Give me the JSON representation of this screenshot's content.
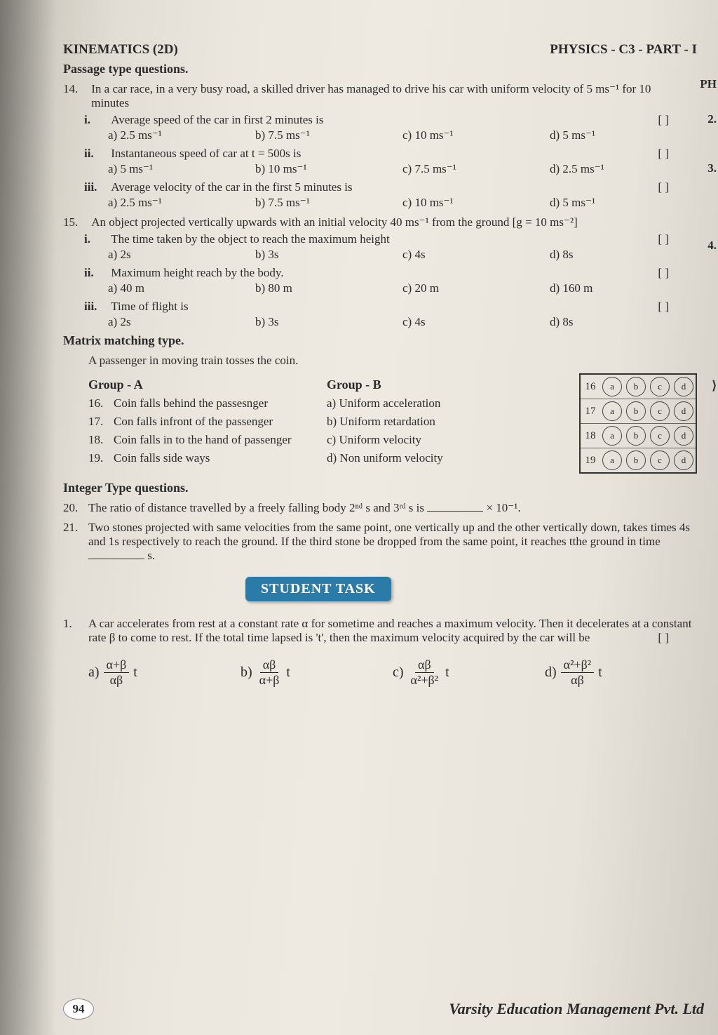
{
  "header": {
    "chapter": "KINEMATICS (2D)",
    "subject": "PHYSICS - C3 - PART - I"
  },
  "section_passage": "Passage type questions.",
  "q14": {
    "num": "14.",
    "text": "In a car race, in a very busy road, a skilled driver has managed to drive his car with uniform velocity of 5 ms⁻¹ for 10 minutes",
    "i": {
      "label": "i.",
      "text": "Average speed of the car in first 2 minutes is",
      "bracket": "[     ]",
      "a": "a) 2.5 ms⁻¹",
      "b": "b) 7.5 ms⁻¹",
      "c": "c) 10 ms⁻¹",
      "d": "d) 5 ms⁻¹"
    },
    "ii": {
      "label": "ii.",
      "text": "Instantaneous speed of car at t = 500s is",
      "bracket": "[     ]",
      "a": "a) 5 ms⁻¹",
      "b": "b) 10 ms⁻¹",
      "c": "c) 7.5 ms⁻¹",
      "d": "d) 2.5 ms⁻¹"
    },
    "iii": {
      "label": "iii.",
      "text": "Average velocity of the car in the first 5 minutes is",
      "bracket": "[     ]",
      "a": "a) 2.5 ms⁻¹",
      "b": "b) 7.5 ms⁻¹",
      "c": "c) 10 ms⁻¹",
      "d": "d) 5 ms⁻¹"
    }
  },
  "q15": {
    "num": "15.",
    "text": "An object projected vertically upwards with an initial velocity 40 ms⁻¹ from the ground [g = 10 ms⁻²]",
    "i": {
      "label": "i.",
      "text": "The time taken by the object to reach the maximum height",
      "bracket": "[     ]",
      "a": "a) 2s",
      "b": "b) 3s",
      "c": "c) 4s",
      "d": "d) 8s"
    },
    "ii": {
      "label": "ii.",
      "text": "Maximum height reach by the body.",
      "bracket": "[     ]",
      "a": "a) 40 m",
      "b": "b) 80 m",
      "c": "c) 20 m",
      "d": "d) 160 m"
    },
    "iii": {
      "label": "iii.",
      "text": "Time of flight is",
      "bracket": "[     ]",
      "a": "a) 2s",
      "b": "b) 3s",
      "c": "c) 4s",
      "d": "d) 8s"
    }
  },
  "section_matrix": "Matrix matching type.",
  "matrix": {
    "intro": "A passenger in moving train tosses the coin.",
    "groupA_h": "Group - A",
    "groupB_h": "Group - B",
    "r16": {
      "n": "16.",
      "a": "Coin falls behind the passesnger",
      "b": "a) Uniform acceleration"
    },
    "r17": {
      "n": "17.",
      "a": "Con falls infront of the passenger",
      "b": "b) Uniform retardation"
    },
    "r18": {
      "n": "18.",
      "a": "Coin falls in to the hand of passenger",
      "b": "c) Uniform velocity"
    },
    "r19": {
      "n": "19.",
      "a": "Coin falls side ways",
      "b": "d) Non uniform velocity"
    },
    "omr_rows": [
      "16",
      "17",
      "18",
      "19"
    ],
    "omr_cols": [
      "a",
      "b",
      "c",
      "d"
    ]
  },
  "section_integer": "Integer Type questions.",
  "q20": {
    "num": "20.",
    "text_a": "The ratio of distance travelled by a freely falling body 2ⁿᵈ s and 3ʳᵈ s is ",
    "text_b": " × 10⁻¹."
  },
  "q21": {
    "num": "21.",
    "text_a": "Two stones projected with same velocities from the same point, one vertically up and the other vertically down, takes times 4s and 1s respectively to reach the ground. If the third stone be dropped from the same point, it reaches tthe ground in time ",
    "text_b": " s."
  },
  "task_badge": "STUDENT TASK",
  "task1": {
    "num": "1.",
    "text": "A car accelerates from rest at a constant rate α for sometime and reaches a maximum velocity. Then it decelerates at a constant rate β to come to rest. If the total time lapsed is 't', then the maximum velocity acquired by the car will be",
    "bracket": "[     ]",
    "opts": {
      "a": {
        "label": "a)",
        "num": "α+β",
        "den": "αβ",
        "suf": "t"
      },
      "b": {
        "label": "b)",
        "num": "αβ",
        "den": "α+β",
        "suf": "t"
      },
      "c": {
        "label": "c)",
        "num": "αβ",
        "den": "α²+β²",
        "suf": "t"
      },
      "d": {
        "label": "d)",
        "num": "α²+β²",
        "den": "αβ",
        "suf": "t"
      }
    }
  },
  "footer": {
    "page": "94",
    "publisher": "Varsity Education Management Pvt. Ltd"
  },
  "edge": {
    "ph": "PH",
    "n2": "2.",
    "n3": "3.",
    "n4": "4.",
    "sym": "⟩"
  }
}
